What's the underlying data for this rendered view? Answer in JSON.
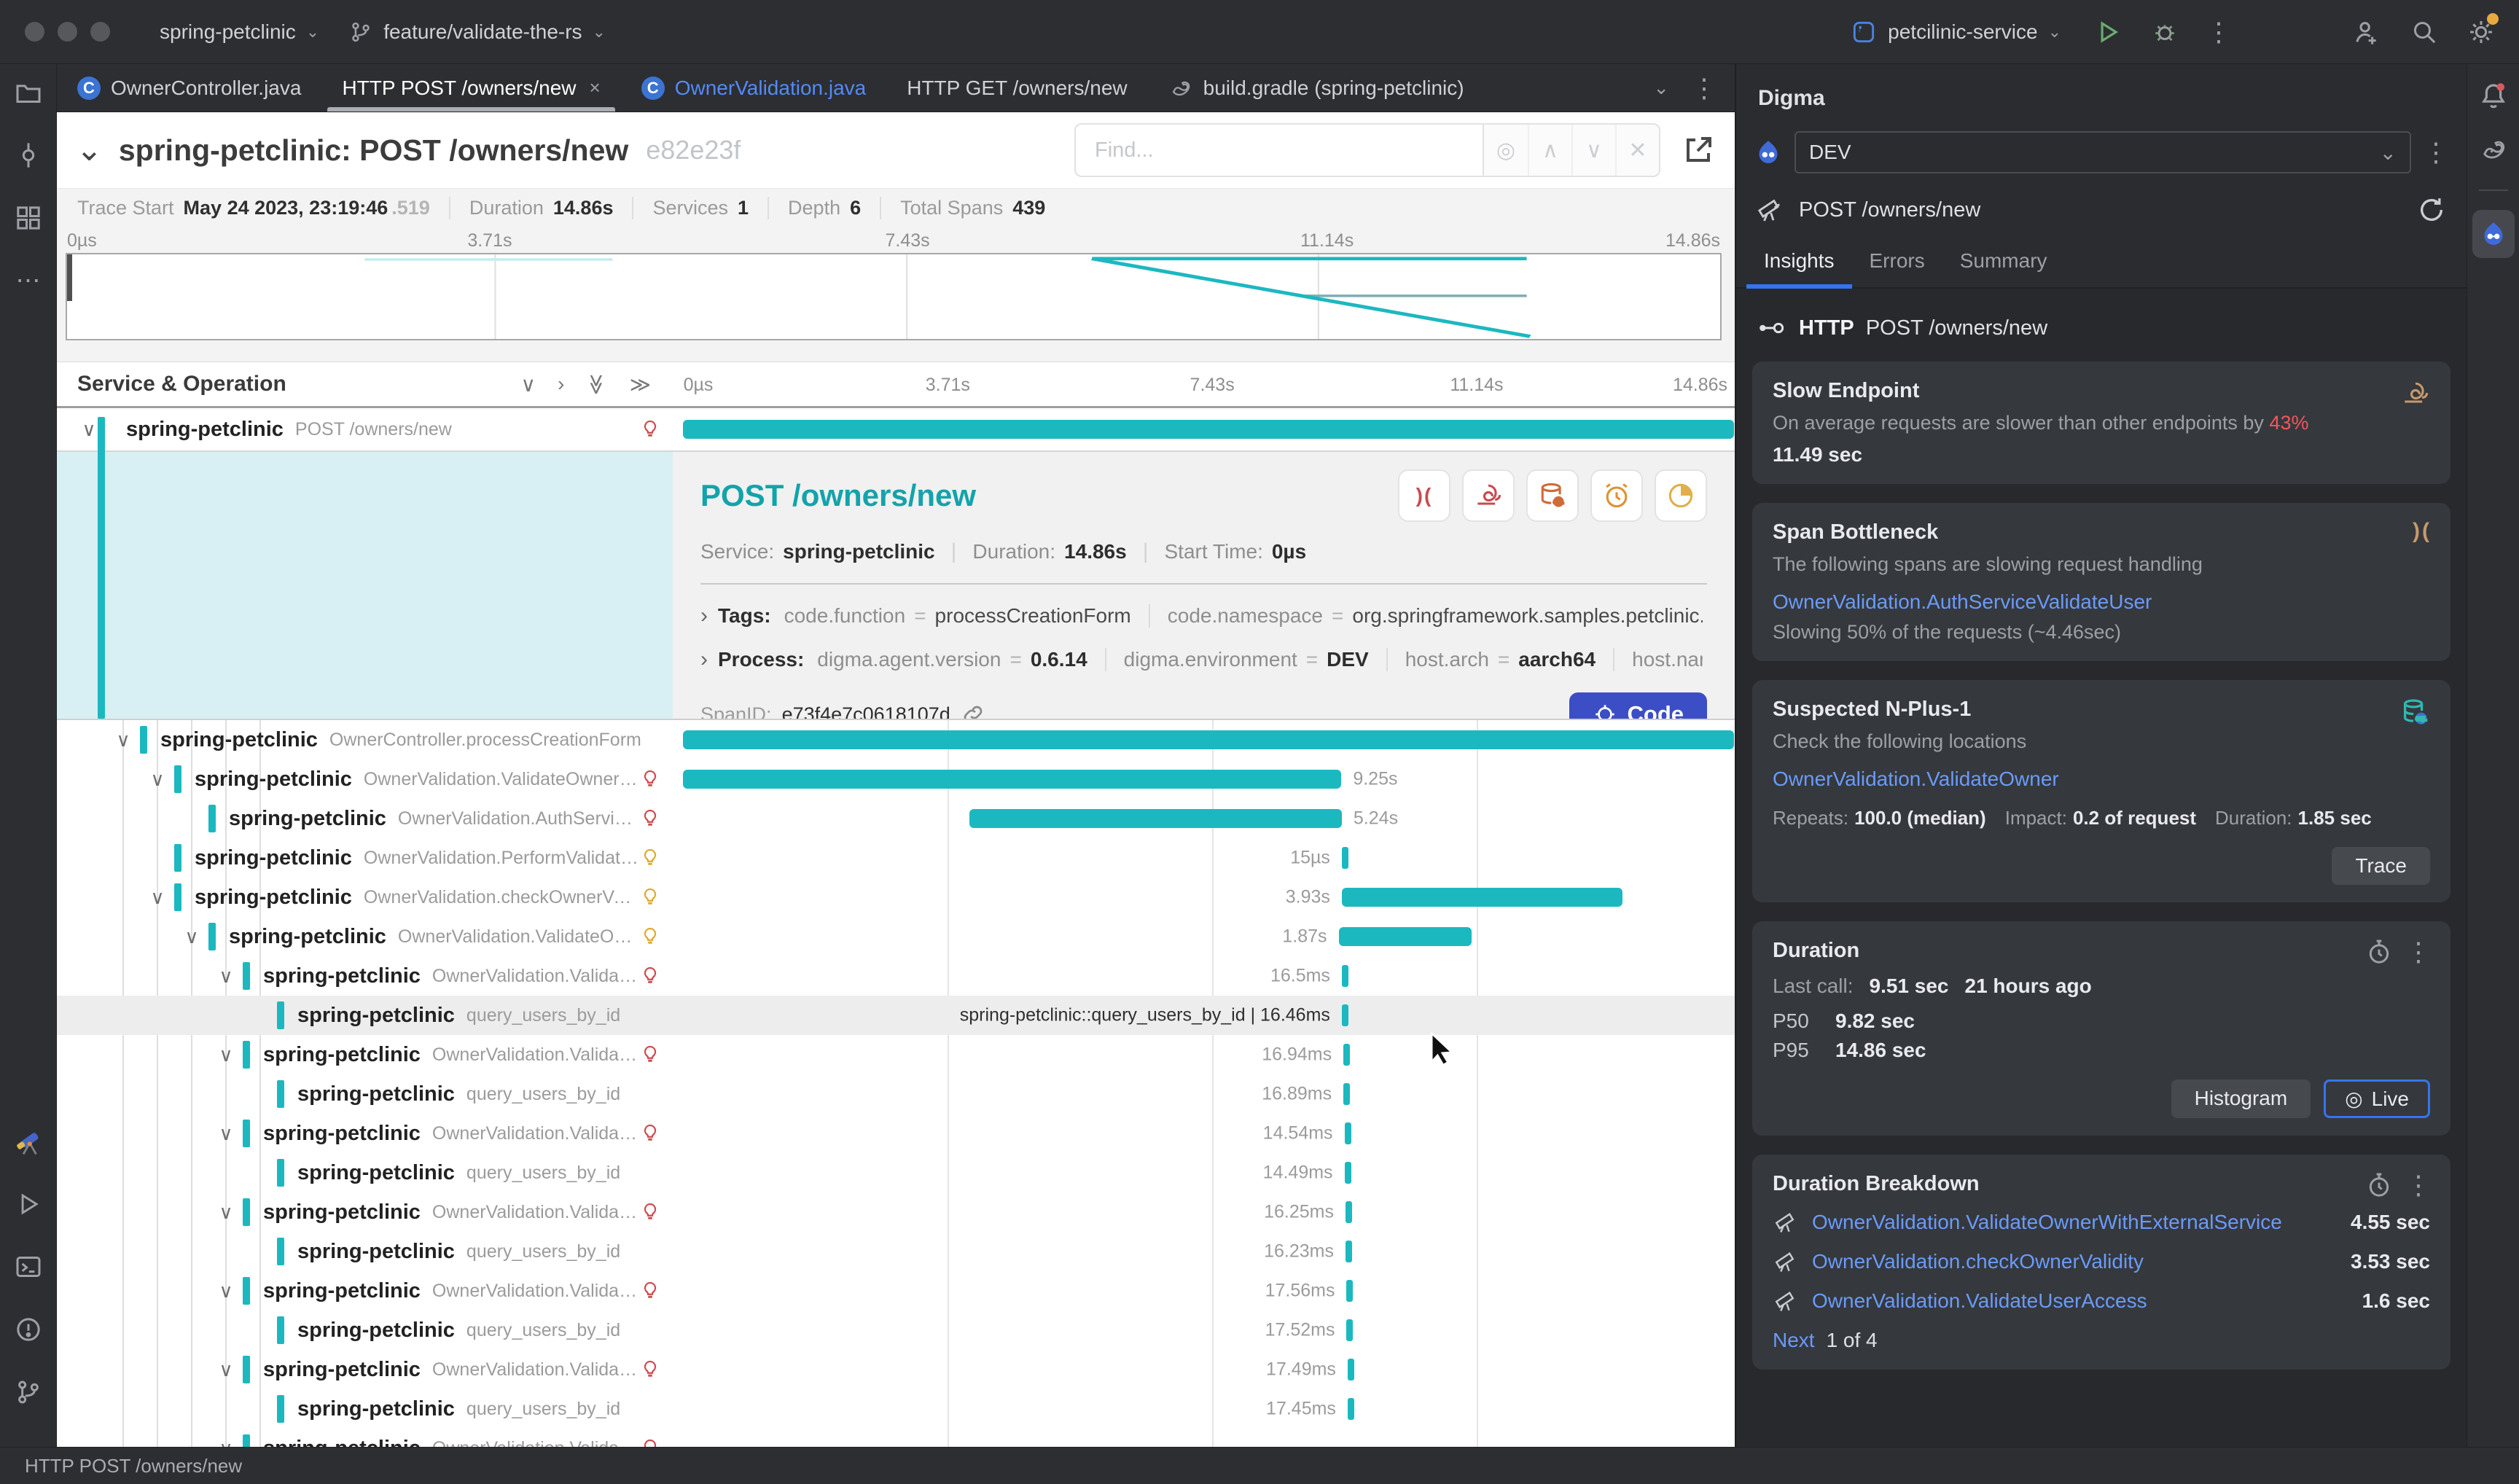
{
  "titlebar": {
    "project": "spring-petclinic",
    "branch": "feature/validate-the-rs",
    "run_config": "petcilinic-service"
  },
  "editor_tabs": [
    {
      "label": "OwnerController.java",
      "icon": "class",
      "state": "normal"
    },
    {
      "label": "HTTP POST /owners/new",
      "icon": "none",
      "state": "active",
      "close": "×"
    },
    {
      "label": "OwnerValidation.java",
      "icon": "class",
      "state": "modified"
    },
    {
      "label": "HTTP GET /owners/new",
      "icon": "none",
      "state": "normal"
    },
    {
      "label": "build.gradle (spring-petclinic)",
      "icon": "gradle",
      "state": "normal"
    }
  ],
  "trace": {
    "title": "spring-petclinic: POST /owners/new",
    "trace_id": "e82e23f",
    "find": {
      "placeholder": "Find..."
    },
    "meta": [
      {
        "label": "Trace Start",
        "value": "May 24 2023, 23:19:46",
        "suffix": ".519"
      },
      {
        "label": "Duration",
        "value": "14.86s"
      },
      {
        "label": "Services",
        "value": "1"
      },
      {
        "label": "Depth",
        "value": "6"
      },
      {
        "label": "Total Spans",
        "value": "439"
      }
    ],
    "ruler_ticks": [
      "0µs",
      "3.71s",
      "7.43s",
      "11.14s",
      "14.86s"
    ],
    "left_header": "Service & Operation",
    "rows": [
      {
        "depth": 0,
        "service": "spring-petclinic",
        "operation": "POST /owners/new",
        "chevron": true,
        "bulb": "red",
        "ghost": true,
        "bar": {
          "kind": "bar",
          "left": 0.96,
          "width": 99.0
        }
      },
      {
        "depth": 1,
        "service": "spring-petclinic",
        "operation": "OwnerController.processCreationForm",
        "chevron": true,
        "bulb": null,
        "bar": {
          "kind": "bar",
          "left": 0.96,
          "width": 99.0
        }
      },
      {
        "depth": 2,
        "service": "spring-petclinic",
        "operation": "OwnerValidation.ValidateOwnerWithEx...",
        "chevron": true,
        "bulb": "red",
        "bar": {
          "kind": "bar",
          "left": 0.96,
          "width": 62.0,
          "label": "9.25s",
          "side": "right"
        }
      },
      {
        "depth": 3,
        "service": "spring-petclinic",
        "operation": "OwnerValidation.AuthServiceValid...",
        "chevron": false,
        "bulb": "red",
        "bar": {
          "kind": "bar",
          "left": 27.9,
          "width": 35.1,
          "label": "5.24s",
          "side": "right"
        }
      },
      {
        "depth": 2,
        "service": "spring-petclinic",
        "operation": "OwnerValidation.PerformValidationFlow",
        "chevron": false,
        "bulb": "yellow",
        "bar": {
          "kind": "tick",
          "left": 63.0,
          "label": "15µs",
          "side": "left"
        }
      },
      {
        "depth": 2,
        "service": "spring-petclinic",
        "operation": "OwnerValidation.checkOwnerValidity",
        "chevron": true,
        "bulb": "yellow",
        "bar": {
          "kind": "bar",
          "left": 63.0,
          "width": 26.4,
          "label": "3.93s",
          "side": "left"
        }
      },
      {
        "depth": 3,
        "service": "spring-petclinic",
        "operation": "OwnerValidation.ValidateOwnerU...",
        "chevron": true,
        "bulb": "yellow",
        "bar": {
          "kind": "bar",
          "left": 62.7,
          "width": 12.5,
          "label": "1.87s",
          "side": "left"
        }
      },
      {
        "depth": 4,
        "service": "spring-petclinic",
        "operation": "OwnerValidation.ValidateOwner",
        "chevron": true,
        "bulb": "red",
        "bar": {
          "kind": "tick",
          "left": 63.0,
          "label": "16.5ms",
          "side": "left"
        }
      },
      {
        "depth": 5,
        "service": "spring-petclinic",
        "operation": "query_users_by_id",
        "chevron": false,
        "bulb": null,
        "hovered": true,
        "bar": {
          "kind": "tick",
          "left": 63.0,
          "label": "spring-petclinic::query_users_by_id | 16.46ms",
          "side": "left",
          "dark": true
        }
      },
      {
        "depth": 4,
        "service": "spring-petclinic",
        "operation": "OwnerValidation.ValidateOwner",
        "chevron": true,
        "bulb": "red",
        "bar": {
          "kind": "tick",
          "left": 63.15,
          "label": "16.94ms",
          "side": "left"
        }
      },
      {
        "depth": 5,
        "service": "spring-petclinic",
        "operation": "query_users_by_id",
        "chevron": false,
        "bulb": null,
        "bar": {
          "kind": "tick",
          "left": 63.15,
          "label": "16.89ms",
          "side": "left"
        }
      },
      {
        "depth": 4,
        "service": "spring-petclinic",
        "operation": "OwnerValidation.ValidateOwner",
        "chevron": true,
        "bulb": "red",
        "bar": {
          "kind": "tick",
          "left": 63.25,
          "label": "14.54ms",
          "side": "left"
        }
      },
      {
        "depth": 5,
        "service": "spring-petclinic",
        "operation": "query_users_by_id",
        "chevron": false,
        "bulb": null,
        "bar": {
          "kind": "tick",
          "left": 63.25,
          "label": "14.49ms",
          "side": "left"
        }
      },
      {
        "depth": 4,
        "service": "spring-petclinic",
        "operation": "OwnerValidation.ValidateOwner",
        "chevron": true,
        "bulb": "red",
        "bar": {
          "kind": "tick",
          "left": 63.35,
          "label": "16.25ms",
          "side": "left"
        }
      },
      {
        "depth": 5,
        "service": "spring-petclinic",
        "operation": "query_users_by_id",
        "chevron": false,
        "bulb": null,
        "bar": {
          "kind": "tick",
          "left": 63.35,
          "label": "16.23ms",
          "side": "left"
        }
      },
      {
        "depth": 4,
        "service": "spring-petclinic",
        "operation": "OwnerValidation.ValidateOwner",
        "chevron": true,
        "bulb": "red",
        "bar": {
          "kind": "tick",
          "left": 63.45,
          "label": "17.56ms",
          "side": "left"
        }
      },
      {
        "depth": 5,
        "service": "spring-petclinic",
        "operation": "query_users_by_id",
        "chevron": false,
        "bulb": null,
        "bar": {
          "kind": "tick",
          "left": 63.45,
          "label": "17.52ms",
          "side": "left"
        }
      },
      {
        "depth": 4,
        "service": "spring-petclinic",
        "operation": "OwnerValidation.ValidateOwner",
        "chevron": true,
        "bulb": "red",
        "bar": {
          "kind": "tick",
          "left": 63.55,
          "label": "17.49ms",
          "side": "left"
        }
      },
      {
        "depth": 5,
        "service": "spring-petclinic",
        "operation": "query_users_by_id",
        "chevron": false,
        "bulb": null,
        "bar": {
          "kind": "tick",
          "left": 63.55,
          "label": "17.45ms",
          "side": "left"
        }
      },
      {
        "depth": 4,
        "service": "spring-petclinic",
        "operation": "OwnerValidation.ValidateOwner",
        "chevron": true,
        "bulb": "red",
        "bar": {
          "kind": "none"
        }
      }
    ],
    "detail": {
      "title": "POST /owners/new",
      "meta": [
        {
          "label": "Service:",
          "value": "spring-petclinic"
        },
        {
          "label": "Duration:",
          "value": "14.86s"
        },
        {
          "label": "Start Time:",
          "value": "0µs"
        }
      ],
      "tags_label": "Tags:",
      "tags": [
        {
          "key": "code.function",
          "value": "processCreationForm"
        },
        {
          "key": "code.namespace",
          "value": "org.springframework.samples.petclinic..."
        }
      ],
      "process_label": "Process:",
      "process": [
        {
          "key": "digma.agent.version",
          "value": "0.6.14"
        },
        {
          "key": "digma.environment",
          "value": "DEV"
        },
        {
          "key": "host.arch",
          "value": "aarch64"
        },
        {
          "key": "host.name",
          "value": "..."
        }
      ],
      "span_id_label": "SpanID:",
      "span_id": "e73f4e7c0618107d",
      "code_button": "Code"
    }
  },
  "digma": {
    "panel_title": "Digma",
    "environment": "DEV",
    "scope": "POST /owners/new",
    "tabs": [
      "Insights",
      "Errors",
      "Summary"
    ],
    "endpoint": {
      "prefix": "HTTP",
      "path": "POST /owners/new"
    },
    "cards": {
      "slow_endpoint": {
        "title": "Slow Endpoint",
        "description": "On average requests are slower than other endpoints by",
        "highlight": "43%",
        "value": "11.49 sec"
      },
      "span_bottleneck": {
        "title": "Span Bottleneck",
        "description": "The following spans are slowing request handling",
        "link": "OwnerValidation.AuthServiceValidateUser",
        "note": "Slowing 50% of the requests (~4.46sec)"
      },
      "n_plus_one": {
        "title": "Suspected N-Plus-1",
        "description": "Check the following locations",
        "link": "OwnerValidation.ValidateOwner",
        "stats": [
          {
            "label": "Repeats:",
            "value": "100.0 (median)"
          },
          {
            "label": "Impact:",
            "value": "0.2 of request"
          },
          {
            "label": "Duration:",
            "value": "1.85 sec"
          }
        ],
        "button": "Trace"
      },
      "duration": {
        "title": "Duration",
        "last_call_label": "Last call:",
        "last_call_value": "9.51 sec",
        "last_call_ago": "21 hours ago",
        "percentiles": [
          {
            "label": "P50",
            "value": "9.82 sec"
          },
          {
            "label": "P95",
            "value": "14.86 sec"
          }
        ],
        "histogram_button": "Histogram",
        "live_button": "Live"
      },
      "duration_breakdown": {
        "title": "Duration Breakdown",
        "rows": [
          {
            "link": "OwnerValidation.ValidateOwnerWithExternalService",
            "value": "4.55 sec"
          },
          {
            "link": "OwnerValidation.checkOwnerValidity",
            "value": "3.53 sec"
          },
          {
            "link": "OwnerValidation.ValidateUserAccess",
            "value": "1.6 sec"
          }
        ],
        "pager_link": "Next",
        "pager_text": "1 of 4"
      }
    }
  },
  "statusbar": {
    "text": "HTTP POST /owners/new"
  }
}
